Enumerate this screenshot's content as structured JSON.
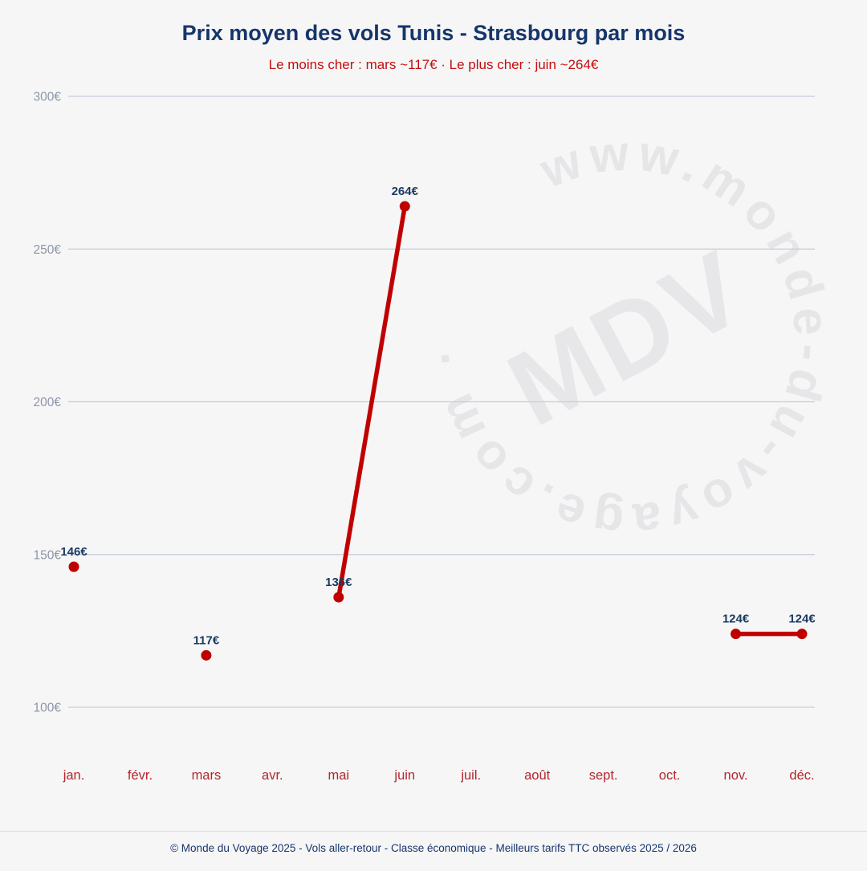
{
  "header": {
    "title": "Prix moyen des vols Tunis - Strasbourg par mois",
    "subtitle": "Le moins cher : mars ~117€ · Le plus cher : juin ~264€"
  },
  "watermark": {
    "ring_text": "www.monde-du-voyage.com · ",
    "center_text": "MDV"
  },
  "footer": {
    "text": "© Monde du Voyage 2025 - Vols aller-retour - Classe économique - Meilleurs tarifs TTC observés 2025 / 2026"
  },
  "chart_data": {
    "type": "line",
    "title": "Prix moyen des vols Tunis - Strasbourg par mois",
    "subtitle": "Le moins cher : mars ~117€ · Le plus cher : juin ~264€",
    "categories": [
      "jan.",
      "févr.",
      "mars",
      "avr.",
      "mai",
      "juin",
      "juil.",
      "août",
      "sept.",
      "oct.",
      "nov.",
      "déc."
    ],
    "values": [
      146,
      null,
      117,
      null,
      136,
      264,
      null,
      null,
      null,
      null,
      124,
      124
    ],
    "unit": "€",
    "ylim": [
      100,
      300
    ],
    "yticks": [
      100,
      150,
      200,
      250,
      300
    ],
    "grid": true,
    "legend": "none",
    "colors": {
      "series": "#c00000",
      "grid": "#c6ccd8",
      "ytick": "#8d96a8",
      "xtick": "#b2272d",
      "label": "#1b3a63",
      "title": "#16356b",
      "subtitle": "#c40d0d"
    }
  }
}
